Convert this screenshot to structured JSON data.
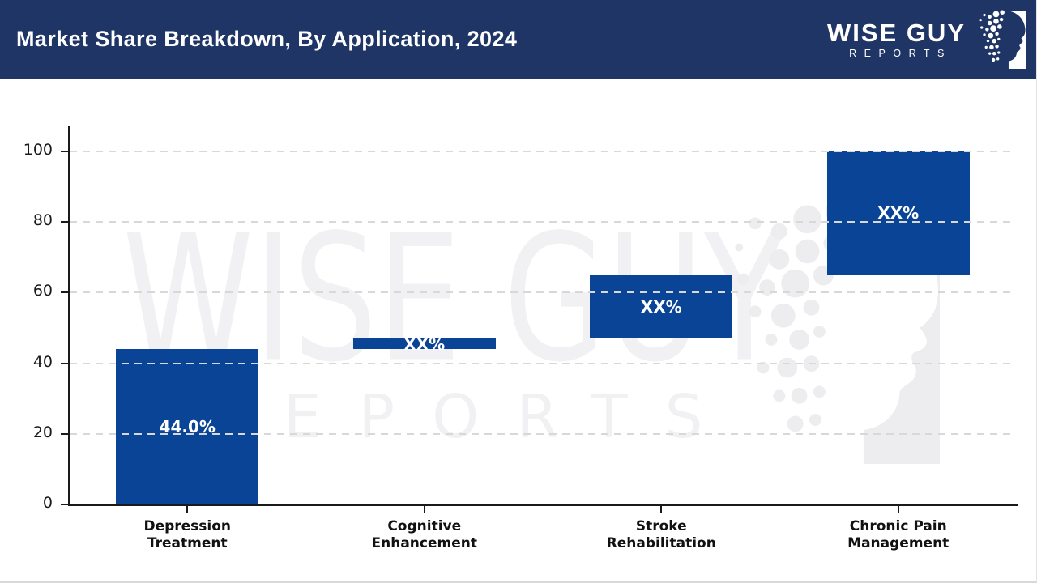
{
  "header": {
    "title": "Market Share Breakdown, By Application, 2024",
    "bg_color": "#1f3566",
    "logo": {
      "primary": "WISE GUY",
      "secondary": "REPORTS"
    }
  },
  "watermark": {
    "primary": "WISE GUY",
    "secondary": "REPORTS"
  },
  "chart_data": {
    "type": "bar",
    "subtype": "waterfall",
    "title": "Market Share Breakdown, By Application, 2024",
    "categories": [
      "Depression\nTreatment",
      "Cognitive\nEnhancement",
      "Stroke\nRehabilitation",
      "Chronic Pain\nManagement"
    ],
    "segments": [
      {
        "category": "Depression Treatment",
        "start": 0,
        "end": 44,
        "label": "44.0%"
      },
      {
        "category": "Cognitive Enhancement",
        "start": 44,
        "end": 47,
        "label": "XX%"
      },
      {
        "category": "Stroke Rehabilitation",
        "start": 47,
        "end": 65,
        "label": "XX%"
      },
      {
        "category": "Chronic Pain Management",
        "start": 65,
        "end": 100,
        "label": "XX%"
      }
    ],
    "ylim": [
      0,
      100
    ],
    "yticks": [
      0,
      20,
      40,
      60,
      80,
      100
    ],
    "xlabel": "",
    "ylabel": "",
    "grid": "dashed horizontal, drawn above bars",
    "legend": false,
    "bar_color": "#0a4496",
    "bar_label_color": "#ffffff",
    "axis_color": "#1a1a1a",
    "grid_color": "#d8d8d8"
  }
}
